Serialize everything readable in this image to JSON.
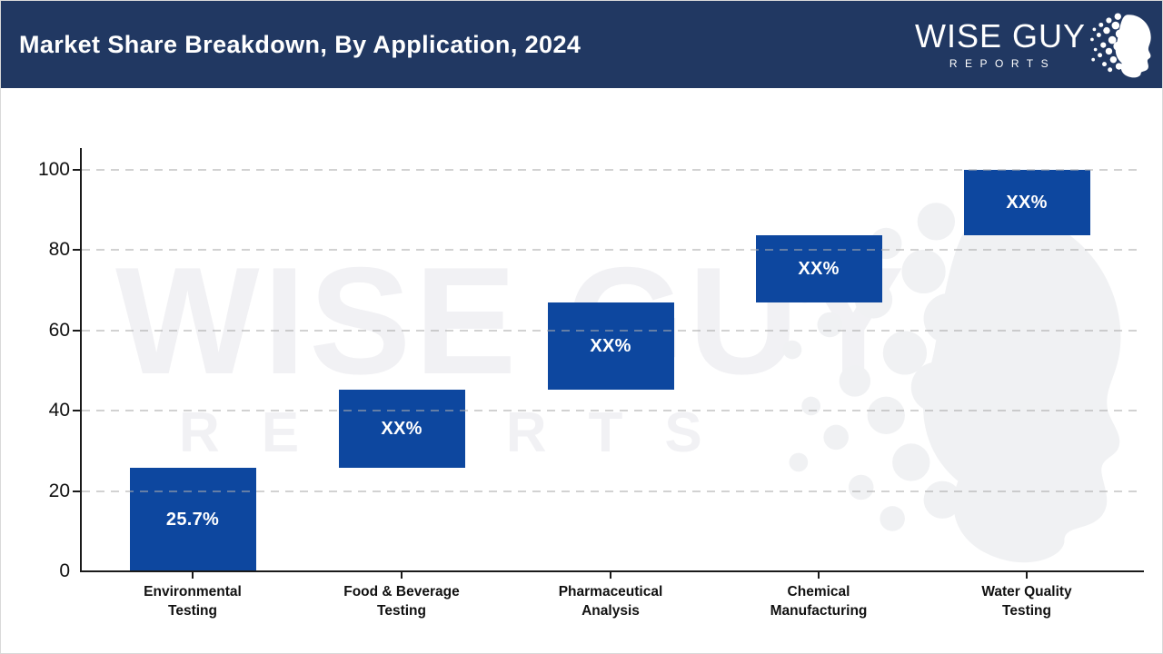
{
  "header": {
    "title": "Market Share Breakdown, By Application, 2024",
    "bg_color": "#213862",
    "logo": {
      "line1": "WISE GUY",
      "line2": "REPORTS"
    }
  },
  "watermark": {
    "line1": "WISE GUY",
    "line2": "REPORTS"
  },
  "chart_data": {
    "type": "bar",
    "variant": "stacked-waterfall-floating-bars",
    "title": "Market Share Breakdown, By Application, 2024",
    "categories": [
      [
        "Environmental",
        "Testing"
      ],
      [
        "Food & Beverage",
        "Testing"
      ],
      [
        "Pharmaceutical",
        "Analysis"
      ],
      [
        "Chemical",
        "Manufacturing"
      ],
      [
        "Water Quality",
        "Testing"
      ]
    ],
    "segments": [
      {
        "category": "Environmental Testing",
        "start": 0,
        "end": 25.7,
        "label": "25.7%"
      },
      {
        "category": "Food & Beverage Testing",
        "start": 25.7,
        "end": 45.2,
        "label": "XX%"
      },
      {
        "category": "Pharmaceutical Analysis",
        "start": 45.2,
        "end": 67.0,
        "label": "XX%"
      },
      {
        "category": "Chemical Manufacturing",
        "start": 67.0,
        "end": 83.6,
        "label": "XX%"
      },
      {
        "category": "Water Quality Testing",
        "start": 83.6,
        "end": 100,
        "label": "XX%"
      }
    ],
    "xlabel": "",
    "ylabel": "",
    "ylim": [
      0,
      100
    ],
    "yticks": [
      0,
      20,
      40,
      60,
      80,
      100
    ],
    "grid": "dashed-horizontal-over-bars",
    "legend": null,
    "bar_color": "#0d479f",
    "bar_label_color": "#ffffff",
    "axis_color": "#1a1a1a"
  }
}
